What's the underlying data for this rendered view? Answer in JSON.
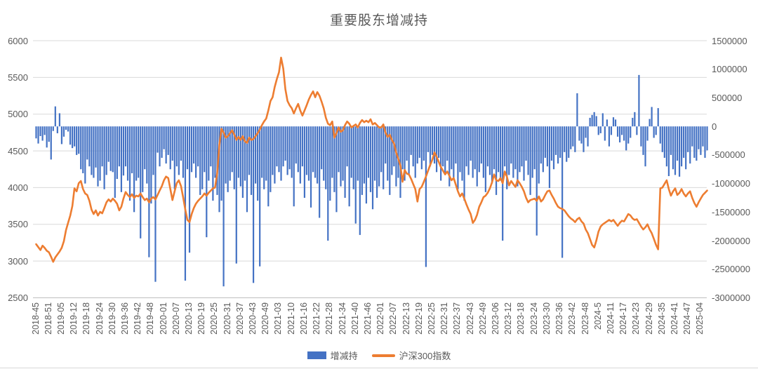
{
  "title": "重要股东增减持",
  "legend": {
    "bar_label": "增减持",
    "line_label": "沪深300指数"
  },
  "colors": {
    "bar": "#4472C4",
    "line": "#ED7D31",
    "grid": "#D9D9D9",
    "axis_line": "#BFBFBF",
    "text": "#595959"
  },
  "chart_data": {
    "type": "bar+line combo (weekly)",
    "title": "重要股东增减持",
    "legend_position": "bottom",
    "grid": "horizontal, from primary (left) axis",
    "left_axis": {
      "min": 2500,
      "max": 6000,
      "step": 500,
      "series": "沪深300指数",
      "ticks": [
        6000,
        5500,
        5000,
        4500,
        4000,
        3500,
        3000,
        2500
      ]
    },
    "right_axis": {
      "min": -3000000,
      "max": 1500000,
      "step": 500000,
      "series": "增减持",
      "ticks": [
        1500000,
        1000000,
        500000,
        0,
        -500000,
        -1000000,
        -1500000,
        -2000000,
        -2500000,
        -3000000
      ]
    },
    "x_tick_interval": 6,
    "x_tick_labels": [
      "2018-45",
      "2018-51",
      "2019-05",
      "2019-12",
      "2019-18",
      "2019-24",
      "2019-30",
      "2019-36",
      "2019-42",
      "2019-48",
      "2020-01",
      "2020-07",
      "2020-13",
      "2020-19",
      "2020-25",
      "2020-31",
      "2020-37",
      "2020-43",
      "2020-49",
      "2021-03",
      "2021-10",
      "2021-16",
      "2021-22",
      "2021-28",
      "2021-34",
      "2021-40",
      "2021-46",
      "2022-01",
      "2022-07",
      "2022-13",
      "2022-19",
      "2022-25",
      "2022-31",
      "2022-37",
      "2022-43",
      "2022-49",
      "2023-06",
      "2023-12",
      "2023-18",
      "2023-24",
      "2023-30",
      "2023-36",
      "2023-42",
      "2023-48",
      "2024-5",
      "2024-11",
      "2024-17",
      "2024-23",
      "2024-29",
      "2024-35",
      "2024-41",
      "2024-47",
      "2025-04"
    ],
    "series": [
      {
        "name": "增减持",
        "type": "bar",
        "axis": "right",
        "color": "#4472C4",
        "values": [
          -210000,
          -300000,
          -170000,
          -250000,
          -150000,
          -370000,
          -270000,
          -580000,
          -80000,
          350000,
          -120000,
          230000,
          -310000,
          -180000,
          -60000,
          -90000,
          -320000,
          -380000,
          -350000,
          -500000,
          -480000,
          -750000,
          -820000,
          -1000000,
          -580000,
          -700000,
          -850000,
          -900000,
          -720000,
          -1050000,
          -950000,
          -700000,
          -1100000,
          -850000,
          -620000,
          -780000,
          -800000,
          -1250000,
          -920000,
          -700000,
          -1150000,
          -860000,
          -700000,
          -950000,
          -1300000,
          -820000,
          -1500000,
          -950000,
          -900000,
          -1960000,
          -1150000,
          -750000,
          -1000000,
          -2290000,
          -1350000,
          -850000,
          -2720000,
          -460000,
          -700000,
          -550000,
          -400000,
          -650000,
          -500000,
          -750000,
          -600000,
          -1100000,
          -700000,
          -850000,
          -600000,
          -900000,
          -2700000,
          -750000,
          -2210000,
          -800000,
          -650000,
          -900000,
          -700000,
          -1200000,
          -1100000,
          -800000,
          -1940000,
          -950000,
          -700000,
          -1300000,
          -900000,
          -1200000,
          -1500000,
          -1300000,
          -2800000,
          -1000000,
          -1150000,
          -950000,
          -800000,
          -1100000,
          -2400000,
          -900000,
          -1050000,
          -1250000,
          -950000,
          -1500000,
          -850000,
          -1200000,
          -2740000,
          -1000000,
          -1300000,
          -2450000,
          -900000,
          -1100000,
          -950000,
          -1400000,
          -1150000,
          -850000,
          -1000000,
          -700000,
          -800000,
          -950000,
          -700000,
          -600000,
          -850000,
          -750000,
          -900000,
          -1400000,
          -650000,
          -800000,
          -1000000,
          -700000,
          -1250000,
          -850000,
          -950000,
          -1420000,
          -800000,
          -900000,
          -1000000,
          -1600000,
          -750000,
          -950000,
          -1100000,
          -2000000,
          -1300000,
          -900000,
          -1150000,
          -1500000,
          -800000,
          -1050000,
          -950000,
          -1250000,
          -700000,
          -1400000,
          -900000,
          -1100000,
          -1700000,
          -950000,
          -1900000,
          -1200000,
          -1000000,
          -1350000,
          -900000,
          -1150000,
          -1450000,
          -950000,
          -1250000,
          -1050000,
          -800000,
          -1100000,
          -650000,
          -950000,
          -1200000,
          -850000,
          -700000,
          -1050000,
          -900000,
          -1250000,
          -750000,
          -950000,
          -600000,
          -850000,
          -500000,
          -700000,
          -900000,
          -650000,
          -550000,
          -750000,
          -600000,
          -2460000,
          -450000,
          -700000,
          -500000,
          -650000,
          -800000,
          -550000,
          -950000,
          -700000,
          -850000,
          -600000,
          -1050000,
          -750000,
          -900000,
          -650000,
          -1100000,
          -800000,
          -950000,
          -1300000,
          -700000,
          -850000,
          -600000,
          -900000,
          -750000,
          -1050000,
          -800000,
          -650000,
          -900000,
          -1150000,
          -700000,
          -850000,
          -1000000,
          -750000,
          -1200000,
          -800000,
          -950000,
          -2000000,
          -700000,
          -1100000,
          -850000,
          -650000,
          -900000,
          -750000,
          -1050000,
          -800000,
          -700000,
          -950000,
          -600000,
          -850000,
          -1200000,
          -900000,
          -750000,
          -1910000,
          -1000000,
          -650000,
          -800000,
          -550000,
          -700000,
          -1080000,
          -600000,
          -750000,
          -500000,
          -650000,
          -550000,
          -2300000,
          -450000,
          -620000,
          -550000,
          -400000,
          -350000,
          -450000,
          580000,
          -250000,
          -300000,
          -450000,
          -200000,
          -350000,
          150000,
          200000,
          250000,
          180000,
          -150000,
          -120000,
          230000,
          -250000,
          120000,
          -350000,
          -150000,
          160000,
          120000,
          -180000,
          -280000,
          -150000,
          -250000,
          -420000,
          -300000,
          -200000,
          150000,
          250000,
          -150000,
          900000,
          -350000,
          -500000,
          -700000,
          -250000,
          130000,
          340000,
          -200000,
          -150000,
          320000,
          -300000,
          -450000,
          -550000,
          -700000,
          -870000,
          -500000,
          -750000,
          -850000,
          -600000,
          -880000,
          -700000,
          -550000,
          -750000,
          -450000,
          -650000,
          -350000,
          -550000,
          -600000,
          -400000,
          -500000,
          -350000,
          -550000,
          -420000
        ]
      },
      {
        "name": "沪深300指数",
        "type": "line",
        "axis": "left",
        "color": "#ED7D31",
        "values": [
          3230,
          3190,
          3150,
          3210,
          3180,
          3140,
          3120,
          3060,
          2990,
          3050,
          3090,
          3130,
          3180,
          3270,
          3420,
          3520,
          3620,
          3750,
          3990,
          3950,
          4060,
          4090,
          3980,
          3920,
          3900,
          3820,
          3700,
          3640,
          3690,
          3620,
          3670,
          3650,
          3720,
          3800,
          3840,
          3810,
          3850,
          3820,
          3780,
          3690,
          3740,
          3850,
          3940,
          3900,
          3870,
          3910,
          3860,
          3890,
          3880,
          3920,
          3870,
          3830,
          3850,
          3800,
          3850,
          3870,
          3840,
          3900,
          3960,
          4020,
          4100,
          4150,
          4130,
          3980,
          3830,
          3950,
          4060,
          4100,
          4020,
          3870,
          3700,
          3560,
          3530,
          3640,
          3720,
          3780,
          3820,
          3850,
          3880,
          3920,
          3890,
          3930,
          3960,
          3990,
          4000,
          4200,
          4580,
          4800,
          4750,
          4680,
          4700,
          4740,
          4780,
          4720,
          4650,
          4690,
          4650,
          4700,
          4630,
          4610,
          4680,
          4650,
          4660,
          4700,
          4740,
          4790,
          4850,
          4900,
          4940,
          5050,
          5180,
          5230,
          5370,
          5480,
          5570,
          5770,
          5620,
          5340,
          5180,
          5120,
          5080,
          5010,
          5080,
          5140,
          5050,
          4980,
          5050,
          5120,
          5200,
          5260,
          5310,
          5230,
          5300,
          5250,
          5170,
          5080,
          4950,
          4870,
          4850,
          4900,
          4680,
          4740,
          4820,
          4760,
          4780,
          4850,
          4900,
          4870,
          4820,
          4840,
          4860,
          4820,
          4880,
          4920,
          4890,
          4910,
          4890,
          4930,
          4860,
          4880,
          4850,
          4820,
          4820,
          4860,
          4750,
          4690,
          4720,
          4650,
          4600,
          4480,
          4390,
          4300,
          4080,
          4240,
          4190,
          4180,
          4120,
          4050,
          3980,
          3810,
          3980,
          4010,
          4080,
          4150,
          4230,
          4310,
          4380,
          4480,
          4420,
          4350,
          4280,
          4230,
          4180,
          4220,
          4160,
          4100,
          4130,
          4040,
          3950,
          3880,
          3920,
          3850,
          3770,
          3700,
          3640,
          3520,
          3560,
          3630,
          3740,
          3800,
          3870,
          3890,
          3930,
          3990,
          4070,
          4180,
          4100,
          4090,
          4130,
          4060,
          4220,
          4150,
          4030,
          4090,
          4050,
          4010,
          4100,
          4060,
          4010,
          3950,
          3860,
          3800,
          3830,
          3840,
          3850,
          3820,
          3880,
          3810,
          3840,
          3900,
          3950,
          3960,
          3900,
          3850,
          3790,
          3740,
          3720,
          3710,
          3690,
          3650,
          3610,
          3580,
          3560,
          3530,
          3570,
          3590,
          3540,
          3510,
          3430,
          3380,
          3300,
          3220,
          3185,
          3280,
          3400,
          3470,
          3500,
          3520,
          3540,
          3560,
          3540,
          3560,
          3520,
          3480,
          3520,
          3550,
          3540,
          3590,
          3640,
          3620,
          3580,
          3560,
          3570,
          3520,
          3470,
          3430,
          3460,
          3500,
          3430,
          3380,
          3300,
          3220,
          3160,
          3990,
          4000,
          4050,
          4100,
          3980,
          3890,
          3950,
          3990,
          3900,
          3930,
          3980,
          3920,
          3880,
          3920,
          3950,
          3860,
          3790,
          3740,
          3800,
          3850,
          3900,
          3930,
          3960
        ]
      }
    ]
  }
}
